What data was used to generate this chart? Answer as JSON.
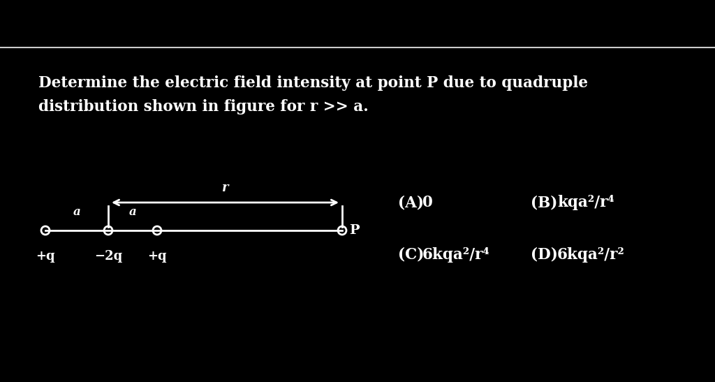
{
  "background_color": "#000000",
  "separator_color": "#cccccc",
  "text_color": "#ffffff",
  "title_line1": "Determine the electric field intensity at point P due to quadruple",
  "title_line2": "distribution shown in figure for r >> a.",
  "options": [
    {
      "label": "(A)",
      "value": "0"
    },
    {
      "label": "(B)",
      "value": "kqa²/r⁴"
    },
    {
      "label": "(C)",
      "value": "6kqa²/r⁴"
    },
    {
      "label": "(D)",
      "value": "6kqa²/r²"
    }
  ],
  "charge_labels": [
    "+q",
    "−2q",
    "+q"
  ],
  "charge_label_a": "a",
  "charge_label_r": "r",
  "point_label": "P",
  "title_fontsize": 15.5,
  "option_fontsize": 15.5,
  "diagram_fontsize": 13,
  "fig_width": 10.24,
  "fig_height": 5.47,
  "dpi": 100
}
